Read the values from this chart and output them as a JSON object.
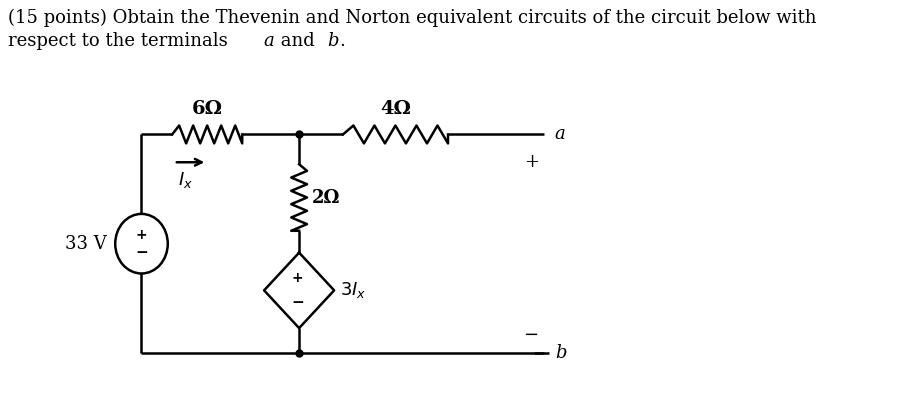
{
  "title_line1": "(15 points) Obtain the Thevenin and Norton equivalent circuits of the circuit below with",
  "title_line2_pre": "respect to the terminals ",
  "title_line2_italic_a": "a",
  "title_line2_mid": " and ",
  "title_line2_italic_b": "b",
  "title_line2_end": ".",
  "label_33V": "33 V",
  "label_6ohm": "6Ω",
  "label_4ohm": "4Ω",
  "label_2ohm": "2Ω",
  "label_a": "a",
  "label_b": "b",
  "label_plus": "+",
  "label_minus": "-",
  "bg_color": "#ffffff",
  "line_color": "#000000",
  "font_size_title": 13,
  "font_size_labels": 13
}
